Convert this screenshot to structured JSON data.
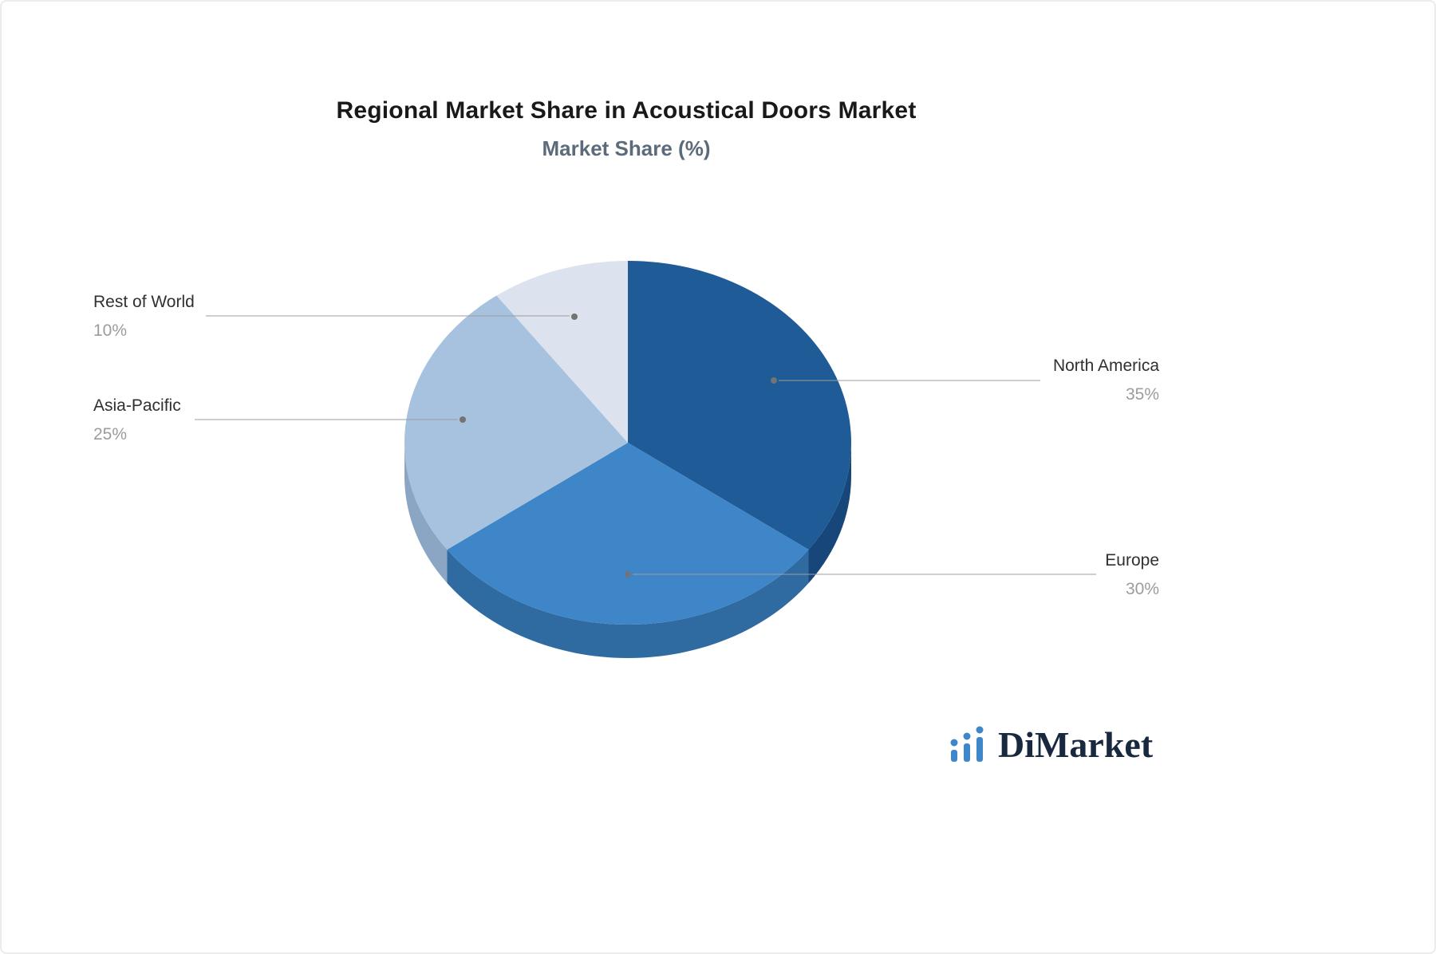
{
  "title": "Regional Market Share in Acoustical Doors Market",
  "subtitle": "Market Share (%)",
  "brand": {
    "name": "DiMarket",
    "icon": "bar-chart-logo-icon",
    "text_color": "#18283f",
    "icon_color": "#3f87c9"
  },
  "chart_data": {
    "type": "pie",
    "title": "Regional Market Share in Acoustical Doors Market",
    "subtitle": "Market Share (%)",
    "unit": "%",
    "effect": "3d",
    "start_angle_deg": -90,
    "direction": "clockwise",
    "legend": "none",
    "background": "#ffffff",
    "connector_color": "#9e9e9e",
    "slices": [
      {
        "label": "North America",
        "value": 35,
        "percent_label": "35%",
        "color": "#1e5b97",
        "side_color": "#17477a"
      },
      {
        "label": "Europe",
        "value": 30,
        "percent_label": "30%",
        "color": "#3e86c8",
        "side_color": "#2f6ba1"
      },
      {
        "label": "Asia-Pacific",
        "value": 25,
        "percent_label": "25%",
        "color": "#a6c2df",
        "side_color": "#8aa6c4"
      },
      {
        "label": "Rest of World",
        "value": 10,
        "percent_label": "10%",
        "color": "#dce3ee",
        "side_color": "#b9c4d5"
      }
    ]
  }
}
